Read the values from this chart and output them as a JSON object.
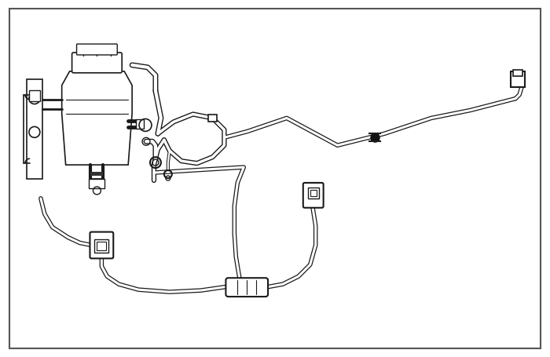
{
  "bg_color": "#ffffff",
  "border_color": "#555555",
  "line_color": "#1a1a1a",
  "fig_width": 7.0,
  "fig_height": 4.55,
  "dpi": 100
}
